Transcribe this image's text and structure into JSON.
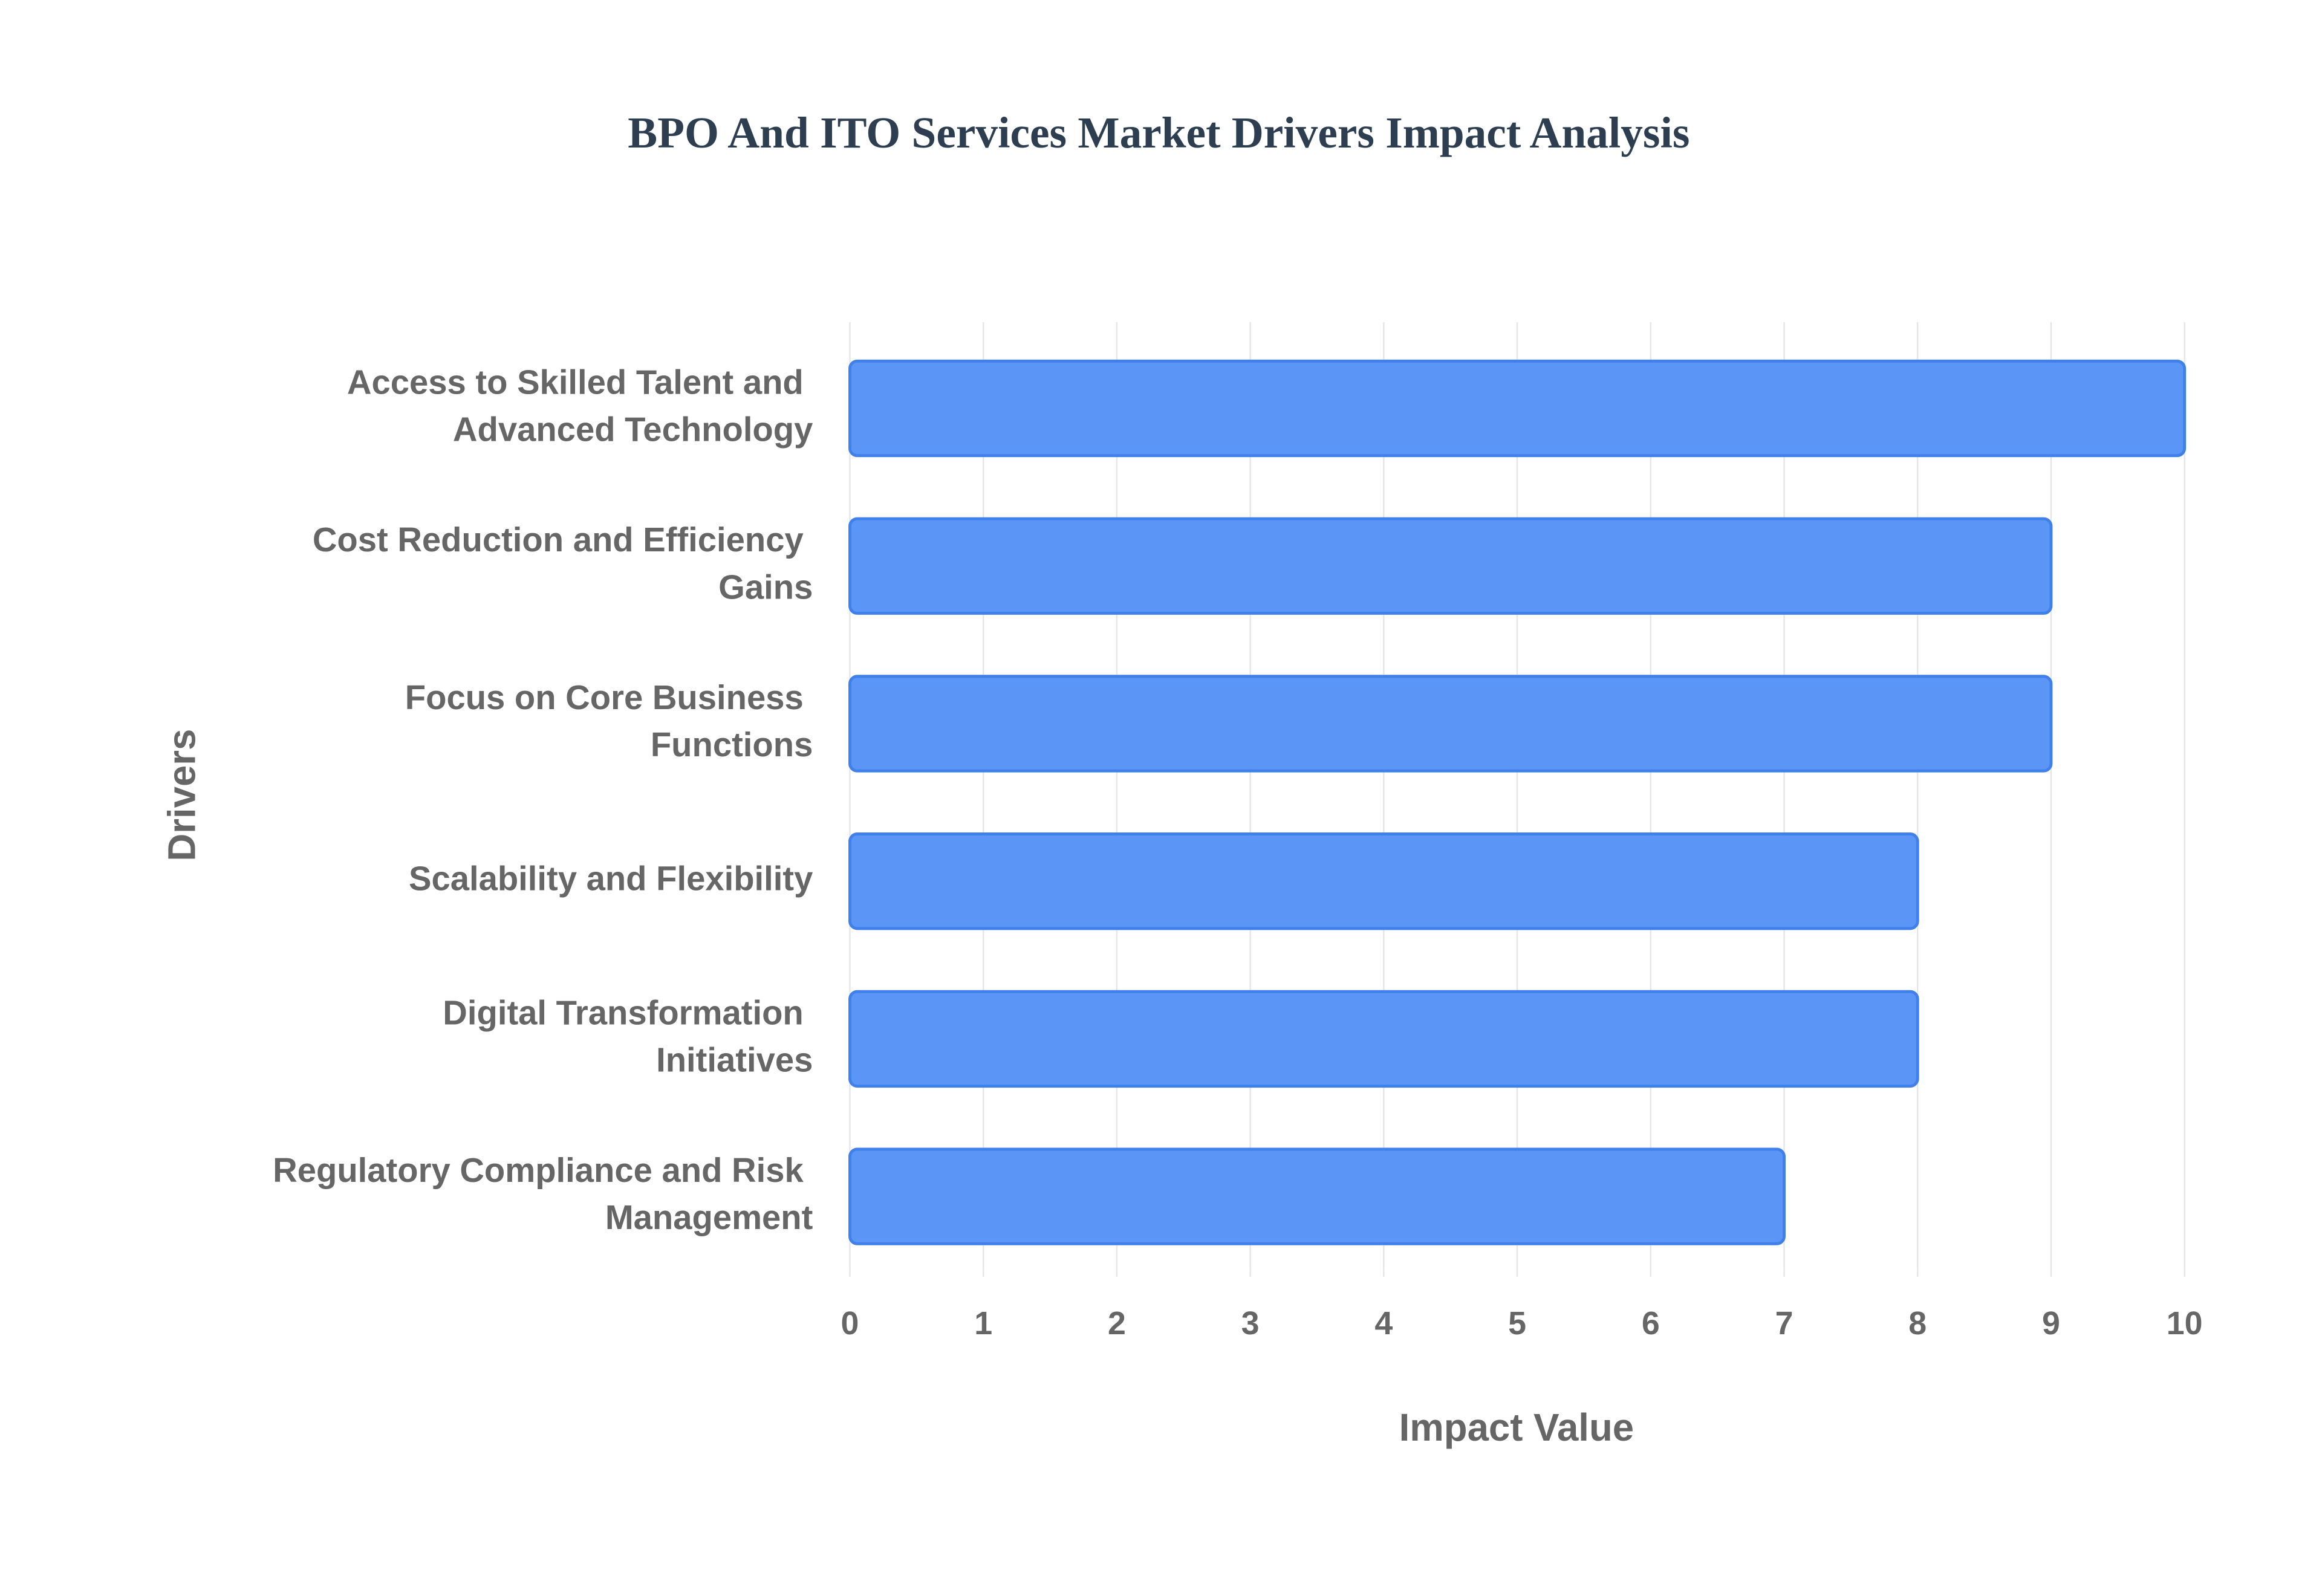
{
  "chart_data": {
    "type": "bar",
    "orientation": "horizontal",
    "title": "BPO And ITO Services Market Drivers Impact Analysis",
    "x_label": "Impact Value",
    "y_label": "Drivers",
    "categories": [
      "Access to Skilled Talent and Advanced Technology",
      "Cost Reduction and Efficiency Gains",
      "Focus on Core Business Functions",
      "Scalability and Flexibility",
      "Digital Transformation Initiatives",
      "Regulatory Compliance and Risk Management"
    ],
    "values": [
      10,
      9,
      9,
      8,
      8,
      7
    ],
    "color": "#5b96f7",
    "xlim": [
      0,
      10
    ],
    "xticks": [
      0,
      1,
      2,
      3,
      4,
      5,
      6,
      7,
      8,
      9,
      10
    ],
    "grid": true
  }
}
